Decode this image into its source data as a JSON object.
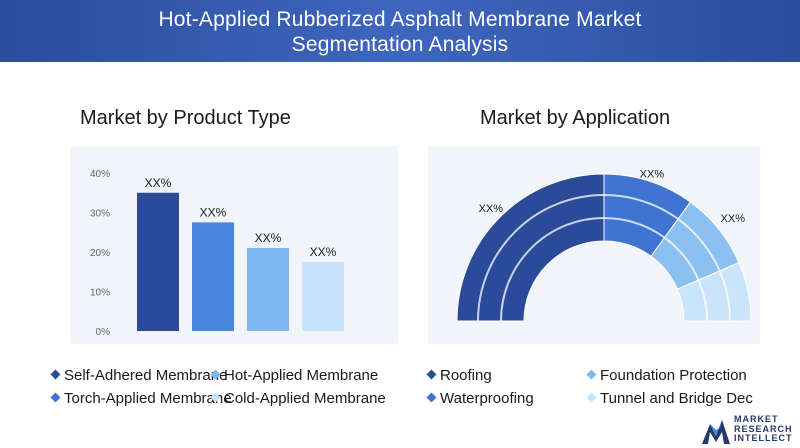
{
  "header": {
    "title_line1": "Hot-Applied Rubberized Asphalt Membrane Market",
    "title_line2": "Segmentation Analysis"
  },
  "left": {
    "title": "Market by Product Type"
  },
  "right": {
    "title": "Market by Application"
  },
  "chart_data": [
    {
      "type": "bar",
      "title": "Market by Product Type",
      "categories": [
        "Self-Adhered Membrane",
        "Hot-Applied Membrane",
        "Torch-Applied Membrane",
        "Cold-Applied Membrane"
      ],
      "values": [
        35,
        27.5,
        21,
        17.5
      ],
      "data_labels": [
        "XX%",
        "XX%",
        "XX%",
        "XX%"
      ],
      "colors": [
        "#2b4a9a",
        "#4a86e0",
        "#7db8f2",
        "#c7e3fb"
      ],
      "yticks": [
        "0%",
        "10%",
        "20%",
        "30%",
        "40%"
      ],
      "ylim": [
        0,
        40
      ],
      "grid": false
    },
    {
      "type": "pie",
      "title": "Market by Application",
      "shape": "semicircle-donut",
      "categories": [
        "Roofing",
        "Waterproofing",
        "Foundation Protection",
        "Tunnel and Bridge Dec"
      ],
      "values": [
        50,
        20,
        17,
        13
      ],
      "data_labels": [
        "XX%",
        "XX%",
        "XX%",
        "XX%"
      ],
      "colors": [
        "#2b4a9a",
        "#3f74d3",
        "#8cc0f0",
        "#c9e4fb"
      ]
    }
  ],
  "legend_left": [
    {
      "label": "Self-Adhered Membrane",
      "color": "#2b4a9a"
    },
    {
      "label": "Hot-Applied Membrane",
      "color": "#7db8f2"
    },
    {
      "label": "Torch-Applied Membrane",
      "color": "#3f74d3"
    },
    {
      "label": "Cold-Applied Membrane",
      "color": "#c7e3fb"
    }
  ],
  "legend_right": [
    {
      "label": "Roofing",
      "color": "#2b4a9a"
    },
    {
      "label": "Foundation Protection",
      "color": "#7db8f2"
    },
    {
      "label": "Waterproofing",
      "color": "#3f74d3"
    },
    {
      "label": "Tunnel and Bridge Dec",
      "color": "#c7e3fb"
    }
  ],
  "logo": {
    "line1": "MARKET",
    "line2": "RESEARCH",
    "line3": "INTELLECT",
    "color": "#24386e"
  }
}
